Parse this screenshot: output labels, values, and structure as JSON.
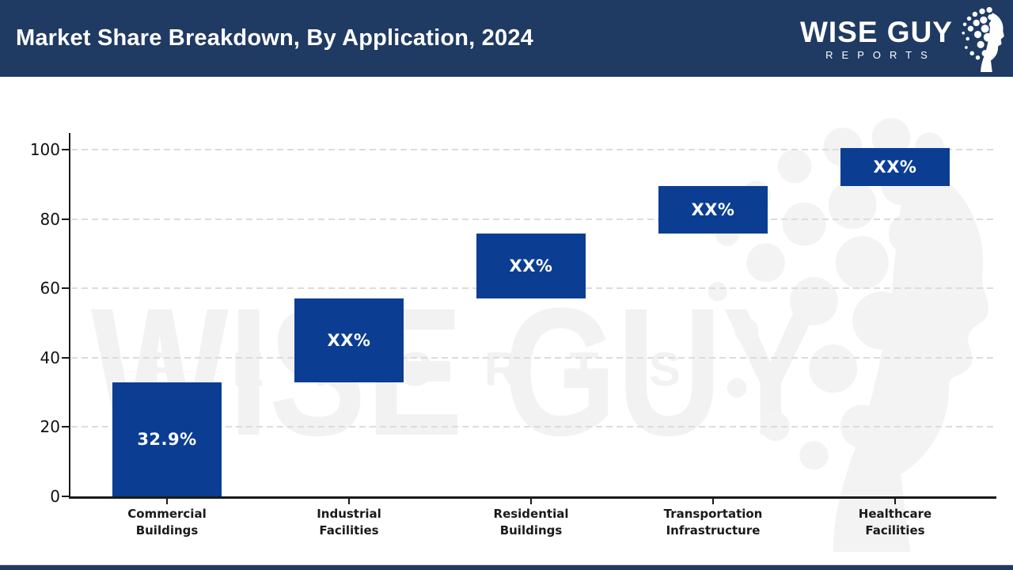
{
  "header": {
    "title": "Market Share Breakdown, By Application, 2024",
    "logo": {
      "line1": "WISE GUY",
      "line2": "REPORTS"
    }
  },
  "watermark": {
    "line1": "WISE GUY",
    "line2": "REPORTS"
  },
  "colors": {
    "header_bg": "#1f3a63",
    "bar_blue": "#0b3e92",
    "axis": "#1a1a1a",
    "gridline": "#dcdcdc",
    "watermark_gray": "#f2f2f2"
  },
  "chart_data": {
    "type": "bar",
    "subtype": "waterfall",
    "title": "",
    "xlabel": "",
    "ylabel": "",
    "categories": [
      [
        "Commercial",
        "Buildings"
      ],
      [
        "Industrial",
        "Facilities"
      ],
      [
        "Residential",
        "Buildings"
      ],
      [
        "Transportation",
        "Infrastructure"
      ],
      [
        "Healthcare",
        "Facilities"
      ]
    ],
    "segments": [
      {
        "start": 0,
        "end": 32.9,
        "label": "32.9%"
      },
      {
        "start": 32.9,
        "end": 57.1,
        "label": "XX%"
      },
      {
        "start": 57.1,
        "end": 75.7,
        "label": "XX%"
      },
      {
        "start": 75.7,
        "end": 89.6,
        "label": "XX%"
      },
      {
        "start": 89.6,
        "end": 100.5,
        "label": "XX%"
      }
    ],
    "ylim": [
      0,
      100
    ],
    "yticks": [
      0,
      20,
      40,
      60,
      80,
      100
    ],
    "grid": "horizontal-dashed",
    "legend": "none",
    "bar_color": "#0b3e92"
  }
}
